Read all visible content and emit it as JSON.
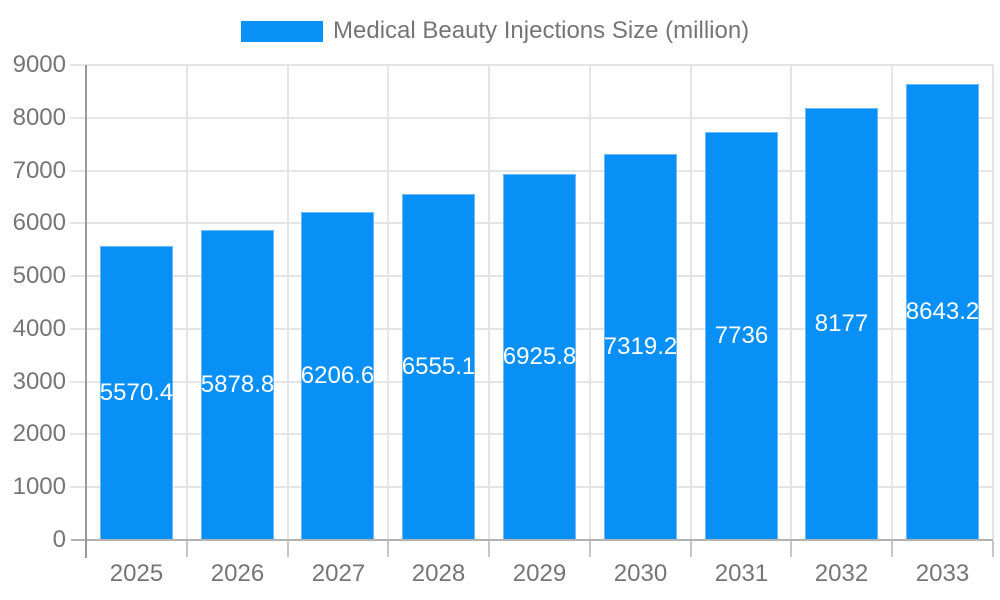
{
  "chart_data": {
    "type": "bar",
    "title": "",
    "series_name": "Medical Beauty Injections Size (million)",
    "legend": "Medical Beauty Injections Size (million)",
    "legend_position": "top",
    "categories": [
      "2025",
      "2026",
      "2027",
      "2028",
      "2029",
      "2030",
      "2031",
      "2032",
      "2033"
    ],
    "values": [
      5570.4,
      5878.8,
      6206.6,
      6555.1,
      6925.8,
      7319.2,
      7736,
      8177,
      8643.2
    ],
    "value_labels": [
      "5570.4",
      "5878.8",
      "6206.6",
      "6555.1",
      "6925.8",
      "7319.2",
      "7736",
      "8177",
      "8643.2"
    ],
    "xlabel": "",
    "ylabel": "",
    "ylim": [
      0,
      9000
    ],
    "ytick_step": 1000,
    "grid": true,
    "data_label_position": "inside-center",
    "colors": {
      "bar_fill": "#0890f6",
      "bar_edge": "#6db9f8",
      "data_label_text": "#ffffff",
      "axis_text": "#757575",
      "grid_line": "#e5e5e5",
      "y_axis_line": "#9a9a9a",
      "x_axis_line": "#b2b2b2",
      "tick_mark": "#c6c6c6",
      "background": "#ffffff"
    }
  }
}
